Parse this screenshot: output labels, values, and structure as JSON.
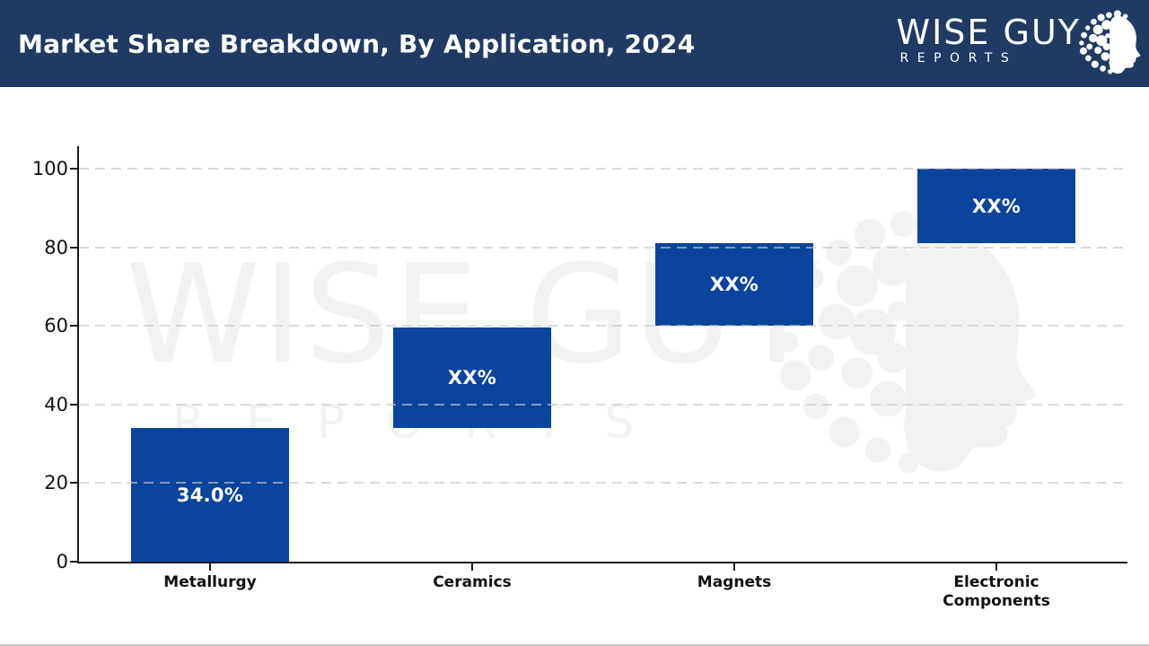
{
  "header": {
    "title": "Market Share Breakdown, By Application, 2024",
    "logo": {
      "line1": "WISE GUY",
      "line2": "REPORTS"
    }
  },
  "watermark": {
    "line1": "WISE GUY",
    "line2": "REPORTS"
  },
  "colors": {
    "header_bg": "#203A64",
    "bar": "#0A449C",
    "bar_label_text": "#FFFFFF",
    "axis": "#1A1A1A",
    "gridline": "#C6C6C6",
    "watermark": "#F1F2F4"
  },
  "chart_data": {
    "type": "bar",
    "subtype": "waterfall",
    "title": "Market Share Breakdown, By Application, 2024",
    "categories": [
      "Metallurgy",
      "Ceramics",
      "Magnets",
      "Electronic Components"
    ],
    "bars": [
      {
        "category": "Metallurgy",
        "start": 0,
        "end": 34,
        "label": "34.0%"
      },
      {
        "category": "Ceramics",
        "start": 34,
        "end": 59.5,
        "label": "XX%"
      },
      {
        "category": "Magnets",
        "start": 60,
        "end": 81,
        "label": "XX%"
      },
      {
        "category": "Electronic Components",
        "start": 81,
        "end": 100,
        "label": "XX%"
      }
    ],
    "y_ticks": [
      0,
      20,
      40,
      60,
      80,
      100
    ],
    "ylim": [
      0,
      100
    ],
    "xlabel": "",
    "ylabel": "",
    "grid": "dashed-horizontal",
    "legend": "none"
  }
}
